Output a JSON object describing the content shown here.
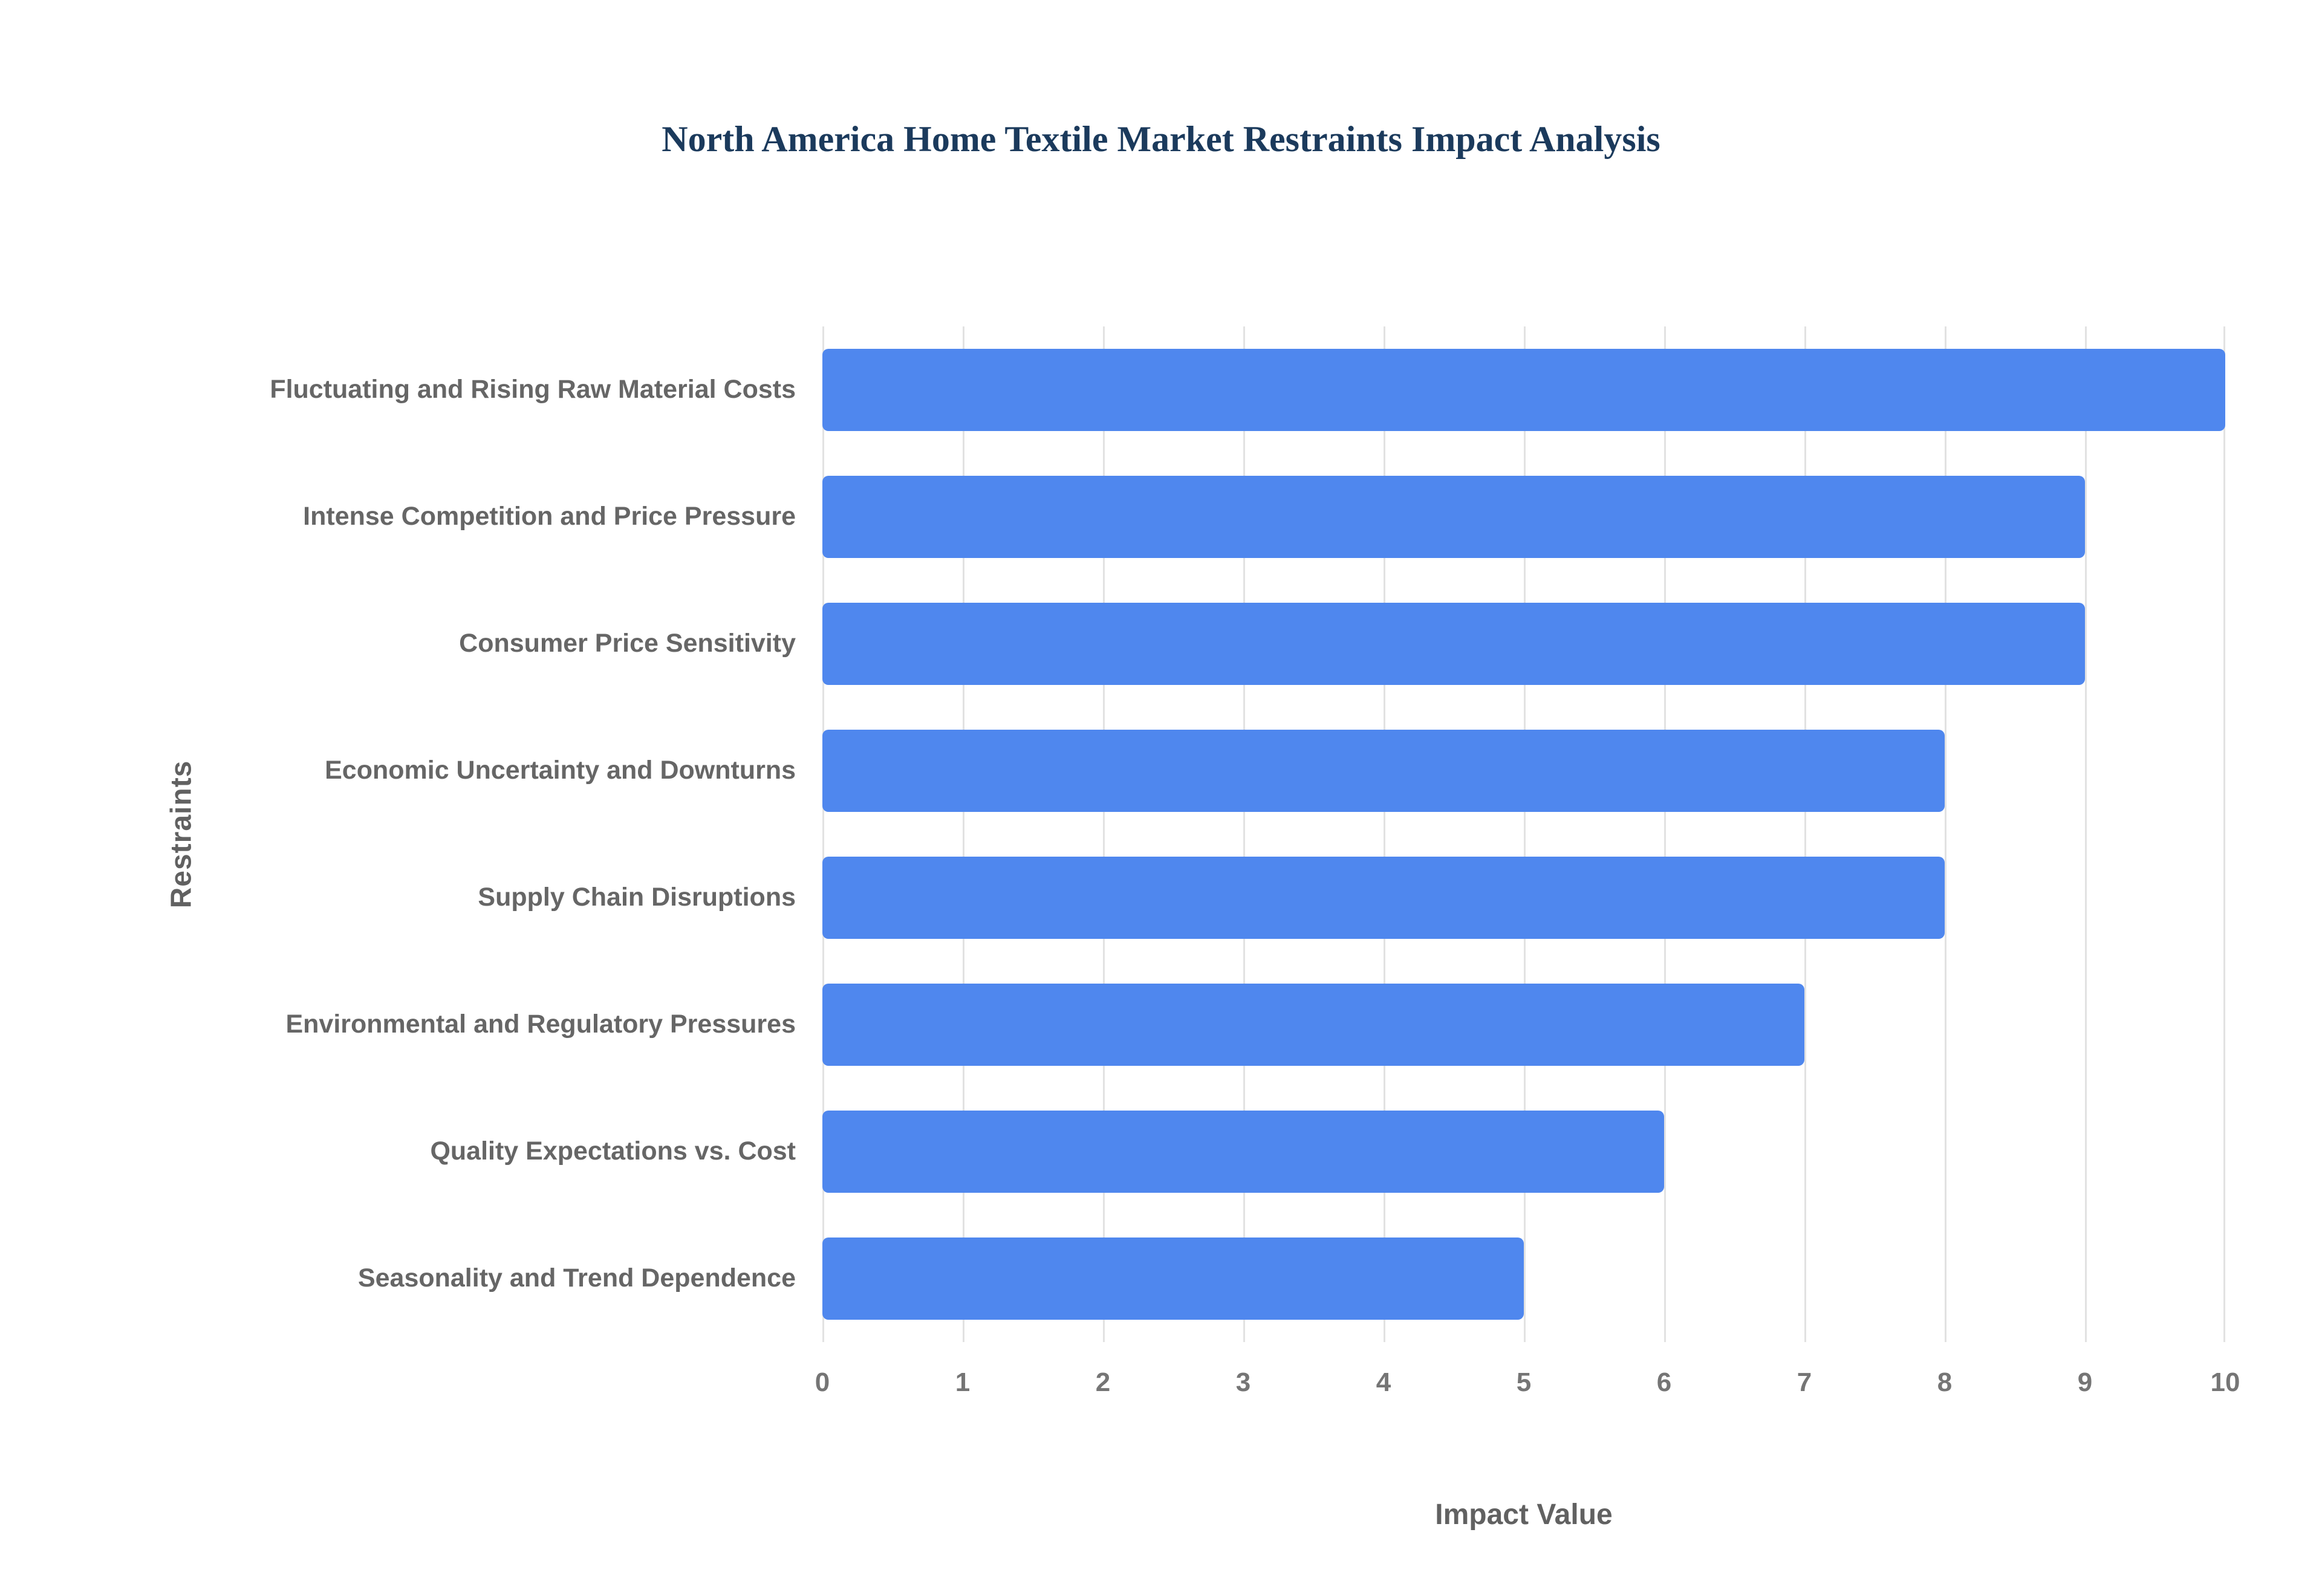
{
  "page": {
    "background": "#ffffff"
  },
  "chart_data": {
    "type": "bar",
    "orientation": "horizontal",
    "title": "North America Home Textile Market Restraints Impact Analysis",
    "xlabel": "Impact Value",
    "ylabel": "Restraints",
    "categories": [
      "Fluctuating and Rising Raw Material Costs",
      "Intense Competition and Price Pressure",
      "Consumer Price Sensitivity",
      "Economic Uncertainty and Downturns",
      "Supply Chain Disruptions",
      "Environmental and Regulatory Pressures",
      "Quality Expectations vs. Cost",
      "Seasonality and Trend Dependence"
    ],
    "values": [
      10,
      9,
      9,
      8,
      8,
      7,
      6,
      5
    ],
    "xlim": [
      0,
      10
    ],
    "xticks": [
      0,
      1,
      2,
      3,
      4,
      5,
      6,
      7,
      8,
      9,
      10
    ],
    "grid": "vertical",
    "legend": "none",
    "bar_color": "#4f87ee",
    "colors": {
      "title": "#1b3a5c",
      "axis_label": "#616161",
      "tick_label": "#757575",
      "category_label": "#666666",
      "gridline": "#e2e2e2"
    }
  }
}
